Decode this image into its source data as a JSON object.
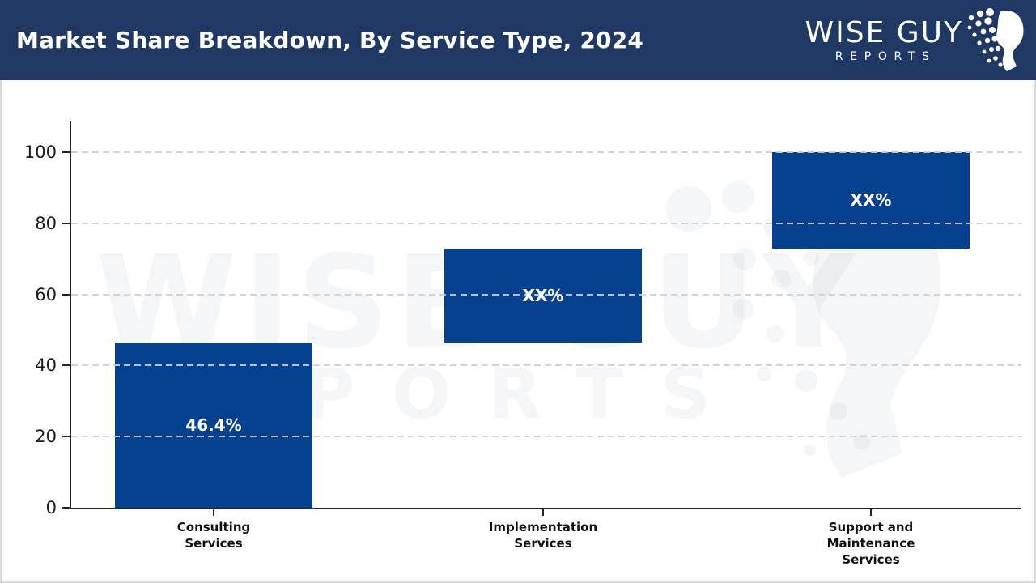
{
  "header": {
    "title": "Market Share Breakdown, By Service Type, 2024",
    "bg_color": "#1F3864",
    "logo": {
      "line1": "WISE GUY",
      "line2": "REPORTS"
    }
  },
  "watermark": {
    "line1": "WISE GUY",
    "line2": "REPORTS"
  },
  "chart_data": {
    "type": "bar",
    "subtype": "floating-segment (waterfall-style) percentage bars",
    "title": "Market Share Breakdown, By Service Type, 2024",
    "xlabel": "",
    "ylabel": "",
    "ylim": [
      0,
      105
    ],
    "y_ticks": [
      0,
      20,
      40,
      60,
      80,
      100
    ],
    "grid": "horizontal dashed lines, drawn over bars",
    "gridline_color": "#d0d2d7",
    "bar_color": "#05418F",
    "value_label_color": "#FFFFFF",
    "categories": [
      "Consulting Services",
      "Implementation Services",
      "Support and Maintenance Services"
    ],
    "categories_display": [
      "Consulting\nServices",
      "Implementation\nServices",
      "Support and\nMaintenance\nServices"
    ],
    "segments": [
      {
        "category": "Consulting Services",
        "start": 0,
        "end": 46.4,
        "label": "46.4%"
      },
      {
        "category": "Implementation Services",
        "start": 46.4,
        "end": 73,
        "label": "XX%"
      },
      {
        "category": "Support and Maintenance Services",
        "start": 73,
        "end": 100,
        "label": "XX%"
      }
    ]
  }
}
